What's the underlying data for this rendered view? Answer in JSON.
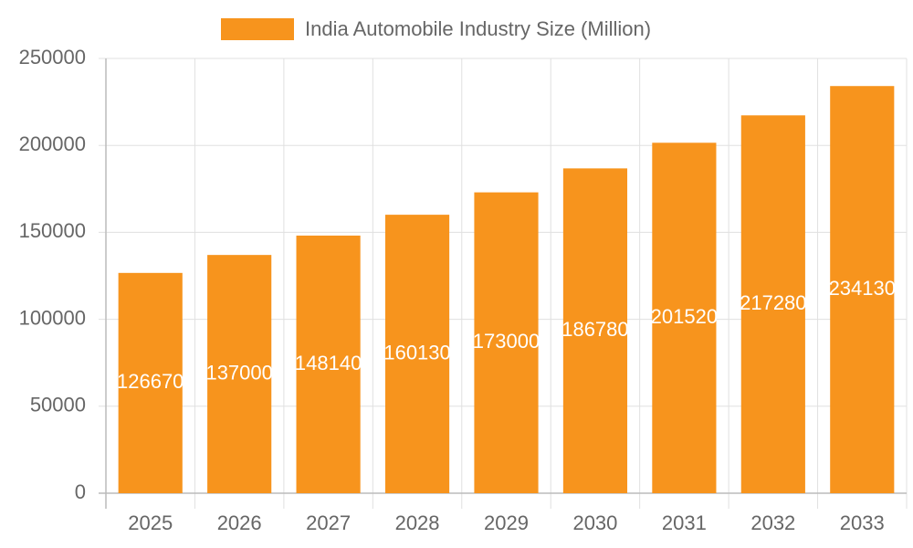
{
  "chart_data": {
    "type": "bar",
    "legend": "India Automobile Industry Size (Million)",
    "categories": [
      "2025",
      "2026",
      "2027",
      "2028",
      "2029",
      "2030",
      "2031",
      "2032",
      "2033"
    ],
    "values": [
      126670,
      137000,
      148140,
      160130,
      173000,
      186780,
      201520,
      217280,
      234130
    ],
    "color": "#f7941d",
    "ylim": [
      0,
      250000
    ],
    "yticks": [
      0,
      50000,
      100000,
      150000,
      200000,
      250000
    ],
    "grid": true
  }
}
